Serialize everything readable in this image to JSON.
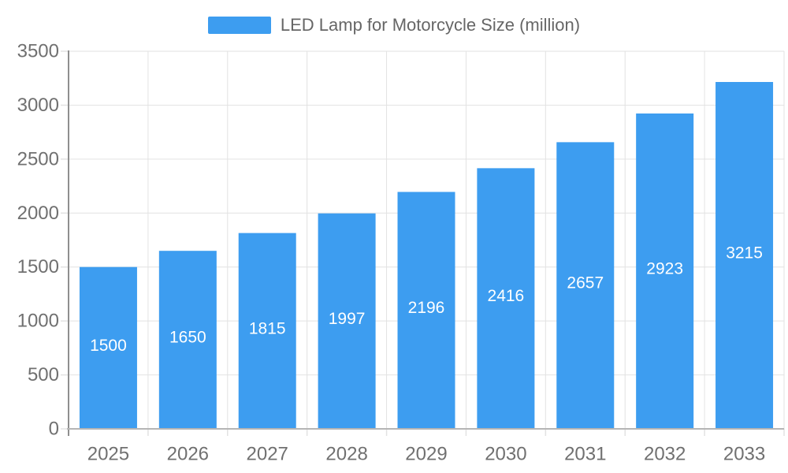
{
  "chart_data": {
    "type": "bar",
    "title": "LED Lamp for Motorcycle Size (million)",
    "legend": {
      "label": "LED Lamp for Motorcycle Size (million)",
      "position": "top"
    },
    "categories": [
      "2025",
      "2026",
      "2027",
      "2028",
      "2029",
      "2030",
      "2031",
      "2032",
      "2033"
    ],
    "values": [
      1500,
      1650,
      1815,
      1997,
      2196,
      2416,
      2657,
      2923,
      3215
    ],
    "series": [
      {
        "name": "LED Lamp for Motorcycle Size (million)",
        "values": [
          1500,
          1650,
          1815,
          1997,
          2196,
          2416,
          2657,
          2923,
          3215
        ]
      }
    ],
    "xlabel": "",
    "ylabel": "",
    "ylim": [
      0,
      3500
    ],
    "ytick_step": 500,
    "ytick_labels": [
      "0",
      "500",
      "1000",
      "1500",
      "2000",
      "2500",
      "3000",
      "3500"
    ],
    "grid": true,
    "bar_value_labels_visible": true,
    "colors": {
      "bar": "#3d9df0",
      "grid": "#e2e2e2",
      "axis_y": "#8f8f8f",
      "axis_x": "#b5b5b5",
      "tick_text": "#707070",
      "title_text": "#666666",
      "bar_label": "#ffffff",
      "background": "#ffffff"
    },
    "fonts": {
      "tick_size": 24,
      "bar_label_size": 21,
      "title_size": 22
    }
  }
}
